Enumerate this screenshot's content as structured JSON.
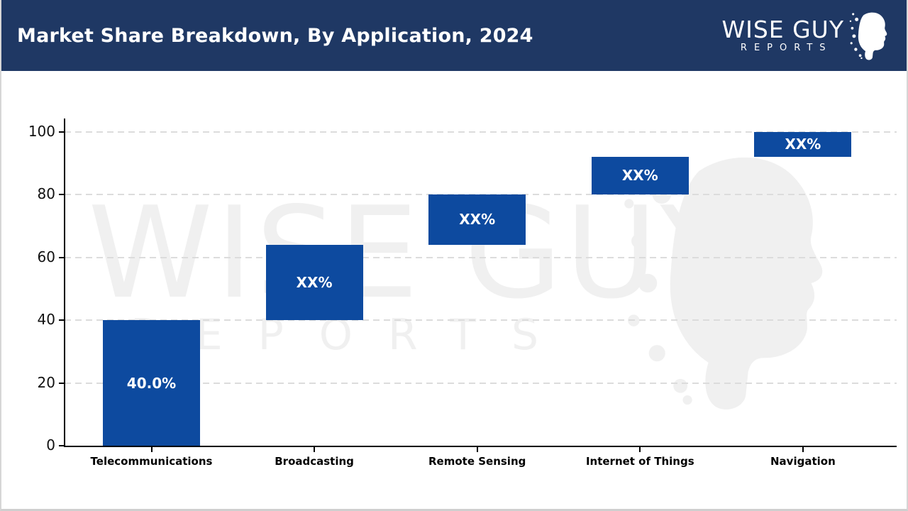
{
  "header": {
    "title": "Market Share Breakdown, By Application, 2024",
    "bg_color": "#1F3864",
    "logo": {
      "line1": "WISE GUY",
      "line2": "REPORTS"
    }
  },
  "watermark": {
    "line1": "WISE GUY",
    "line2": "REPORTS"
  },
  "chart_data": {
    "type": "bar",
    "subtype": "waterfall",
    "title": "Market Share Breakdown, By Application, 2024",
    "categories": [
      "Telecommunications",
      "Broadcasting",
      "Remote Sensing",
      "Internet of Things",
      "Navigation"
    ],
    "segments": [
      {
        "category": "Telecommunications",
        "start": 0,
        "end": 40,
        "value": 40,
        "label": "40.0%"
      },
      {
        "category": "Broadcasting",
        "start": 40,
        "end": 64,
        "value": 24,
        "label": "XX%"
      },
      {
        "category": "Remote Sensing",
        "start": 64,
        "end": 80,
        "value": 16,
        "label": "XX%"
      },
      {
        "category": "Internet of Things",
        "start": 80,
        "end": 92,
        "value": 12,
        "label": "XX%"
      },
      {
        "category": "Navigation",
        "start": 92,
        "end": 100,
        "value": 8,
        "label": "XX%"
      }
    ],
    "yticks": [
      0,
      20,
      40,
      60,
      80,
      100
    ],
    "ylim": [
      0,
      104
    ],
    "xlabel": "",
    "ylabel": "",
    "grid": "horizontal-dashed",
    "legend": "none",
    "bar_color": "#0D4A9F",
    "bar_label_color": "#FFFFFF"
  }
}
